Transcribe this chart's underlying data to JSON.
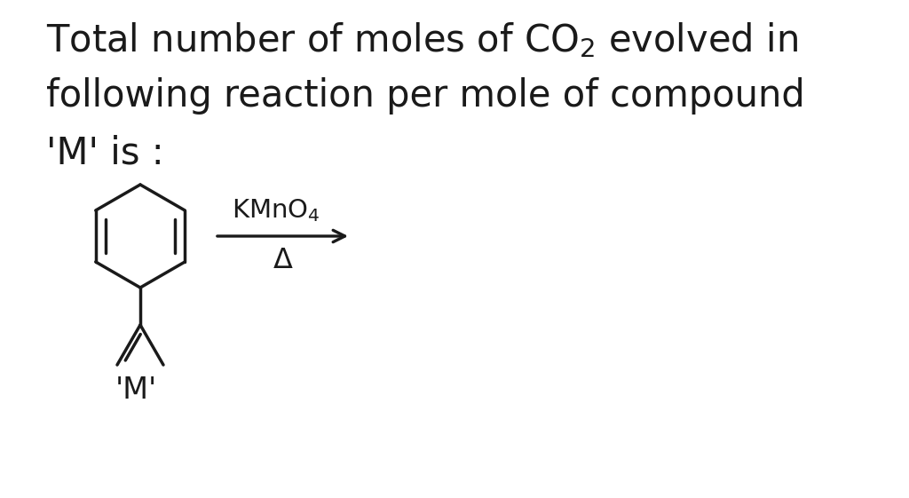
{
  "background_color": "#ffffff",
  "text_color": "#1a1a1a",
  "line_color": "#1a1a1a",
  "title_fontsize": 30,
  "label_fontsize": 24,
  "reagent_fontsize": 21,
  "reagent_above": "KMnO",
  "reagent_sub4": "4",
  "reagent_below": "Δ",
  "label_M": "'M'"
}
